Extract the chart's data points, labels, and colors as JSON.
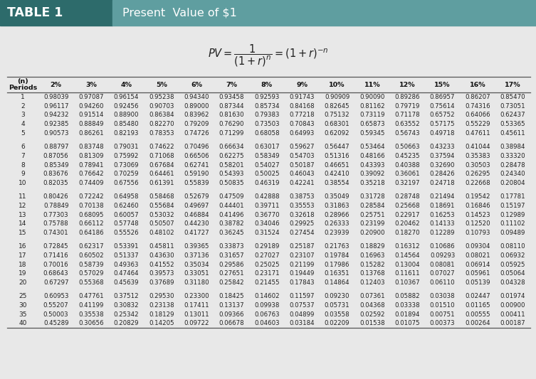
{
  "title_left": "TABLE 1",
  "title_right": "Present  Value of $1",
  "header_left_color": "#2d6b6b",
  "header_right_color": "#5f9ea0",
  "bg_color": "#e8e8e8",
  "outer_bg": "#c8c8c8",
  "text_color": "#222222",
  "header_text_color": "#ffffff",
  "col_header_color": "#111111",
  "rate_labels": [
    "2%",
    "3%",
    "4%",
    "5%",
    "6%",
    "7%",
    "8%",
    "9%",
    "10%",
    "11%",
    "12%",
    "15%",
    "16%",
    "17%"
  ],
  "rows": [
    [
      1,
      0.98039,
      0.97087,
      0.96154,
      0.95238,
      0.9434,
      0.93458,
      0.92593,
      0.91743,
      0.90909,
      0.9009,
      0.89286,
      0.86957,
      0.86207,
      0.8547
    ],
    [
      2,
      0.96117,
      0.9426,
      0.92456,
      0.90703,
      0.89,
      0.87344,
      0.85734,
      0.84168,
      0.82645,
      0.81162,
      0.79719,
      0.75614,
      0.74316,
      0.73051
    ],
    [
      3,
      0.94232,
      0.91514,
      0.889,
      0.86384,
      0.83962,
      0.8163,
      0.79383,
      0.77218,
      0.75132,
      0.73119,
      0.71178,
      0.65752,
      0.64066,
      0.62437
    ],
    [
      4,
      0.92385,
      0.88849,
      0.8548,
      0.8227,
      0.79209,
      0.7629,
      0.73503,
      0.70843,
      0.68301,
      0.65873,
      0.63552,
      0.57175,
      0.55229,
      0.53365
    ],
    [
      5,
      0.90573,
      0.86261,
      0.82193,
      0.78353,
      0.74726,
      0.71299,
      0.68058,
      0.64993,
      0.62092,
      0.59345,
      0.56743,
      0.49718,
      0.47611,
      0.45611
    ],
    [
      6,
      0.88797,
      0.83748,
      0.79031,
      0.74622,
      0.70496,
      0.66634,
      0.63017,
      0.59627,
      0.56447,
      0.53464,
      0.50663,
      0.43233,
      0.41044,
      0.38984
    ],
    [
      7,
      0.87056,
      0.81309,
      0.75992,
      0.71068,
      0.66506,
      0.62275,
      0.58349,
      0.54703,
      0.51316,
      0.48166,
      0.45235,
      0.37594,
      0.35383,
      0.3332
    ],
    [
      8,
      0.85349,
      0.78941,
      0.73069,
      0.67684,
      0.62741,
      0.58201,
      0.54027,
      0.50187,
      0.46651,
      0.43393,
      0.40388,
      0.3269,
      0.30503,
      0.28478
    ],
    [
      9,
      0.83676,
      0.76642,
      0.70259,
      0.64461,
      0.5919,
      0.54393,
      0.50025,
      0.46043,
      0.4241,
      0.39092,
      0.36061,
      0.28426,
      0.26295,
      0.2434
    ],
    [
      10,
      0.82035,
      0.74409,
      0.67556,
      0.61391,
      0.55839,
      0.50835,
      0.46319,
      0.42241,
      0.38554,
      0.35218,
      0.32197,
      0.24718,
      0.22668,
      0.20804
    ],
    [
      11,
      0.80426,
      0.72242,
      0.64958,
      0.58468,
      0.52679,
      0.47509,
      0.42888,
      0.38753,
      0.35049,
      0.31728,
      0.28748,
      0.21494,
      0.19542,
      0.17781
    ],
    [
      12,
      0.78849,
      0.70138,
      0.6246,
      0.55684,
      0.49697,
      0.44401,
      0.39711,
      0.35553,
      0.31863,
      0.28584,
      0.25668,
      0.18691,
      0.16846,
      0.15197
    ],
    [
      13,
      0.77303,
      0.68095,
      0.60057,
      0.53032,
      0.46884,
      0.41496,
      0.3677,
      0.32618,
      0.28966,
      0.25751,
      0.22917,
      0.16253,
      0.14523,
      0.12989
    ],
    [
      14,
      0.75788,
      0.66112,
      0.57748,
      0.50507,
      0.4423,
      0.38782,
      0.34046,
      0.29925,
      0.26333,
      0.23199,
      0.20462,
      0.14133,
      0.1252,
      0.11102
    ],
    [
      15,
      0.74301,
      0.64186,
      0.55526,
      0.48102,
      0.41727,
      0.36245,
      0.31524,
      0.27454,
      0.23939,
      0.209,
      0.1827,
      0.12289,
      0.10793,
      0.09489
    ],
    [
      16,
      0.72845,
      0.62317,
      0.53391,
      0.45811,
      0.39365,
      0.33873,
      0.29189,
      0.25187,
      0.21763,
      0.18829,
      0.16312,
      0.10686,
      0.09304,
      0.0811
    ],
    [
      17,
      0.71416,
      0.60502,
      0.51337,
      0.4363,
      0.37136,
      0.31657,
      0.27027,
      0.23107,
      0.19784,
      0.16963,
      0.14564,
      0.09293,
      0.08021,
      0.06932
    ],
    [
      18,
      0.70016,
      0.58739,
      0.49363,
      0.41552,
      0.35034,
      0.29586,
      0.25025,
      0.21199,
      0.17986,
      0.15282,
      0.13004,
      0.08081,
      0.06914,
      0.05925
    ],
    [
      19,
      0.68643,
      0.57029,
      0.47464,
      0.39573,
      0.33051,
      0.27651,
      0.23171,
      0.19449,
      0.16351,
      0.13768,
      0.11611,
      0.07027,
      0.05961,
      0.05064
    ],
    [
      20,
      0.67297,
      0.55368,
      0.45639,
      0.37689,
      0.3118,
      0.25842,
      0.21455,
      0.17843,
      0.14864,
      0.12403,
      0.10367,
      0.0611,
      0.05139,
      0.04328
    ],
    [
      25,
      0.60953,
      0.47761,
      0.37512,
      0.2953,
      0.233,
      0.18425,
      0.14602,
      0.11597,
      0.0923,
      0.07361,
      0.05882,
      0.03038,
      0.02447,
      0.01974
    ],
    [
      30,
      0.55207,
      0.41199,
      0.30832,
      0.23138,
      0.17411,
      0.13137,
      0.09938,
      0.07537,
      0.05731,
      0.04368,
      0.03338,
      0.0151,
      0.01165,
      0.009
    ],
    [
      35,
      0.50003,
      0.35538,
      0.25342,
      0.18129,
      0.13011,
      0.09366,
      0.06763,
      0.04899,
      0.03558,
      0.02592,
      0.01894,
      0.00751,
      0.00555,
      0.00411
    ],
    [
      40,
      0.45289,
      0.30656,
      0.20829,
      0.14205,
      0.09722,
      0.06678,
      0.04603,
      0.03184,
      0.02209,
      0.01538,
      0.01075,
      0.00373,
      0.00264,
      0.00187
    ]
  ],
  "period_groups": [
    [
      0,
      1,
      2,
      3,
      4
    ],
    [
      5,
      6,
      7,
      8,
      9
    ],
    [
      10,
      11,
      12,
      13,
      14
    ],
    [
      15,
      16,
      17,
      18,
      19
    ],
    [
      20,
      21,
      22,
      23
    ]
  ]
}
